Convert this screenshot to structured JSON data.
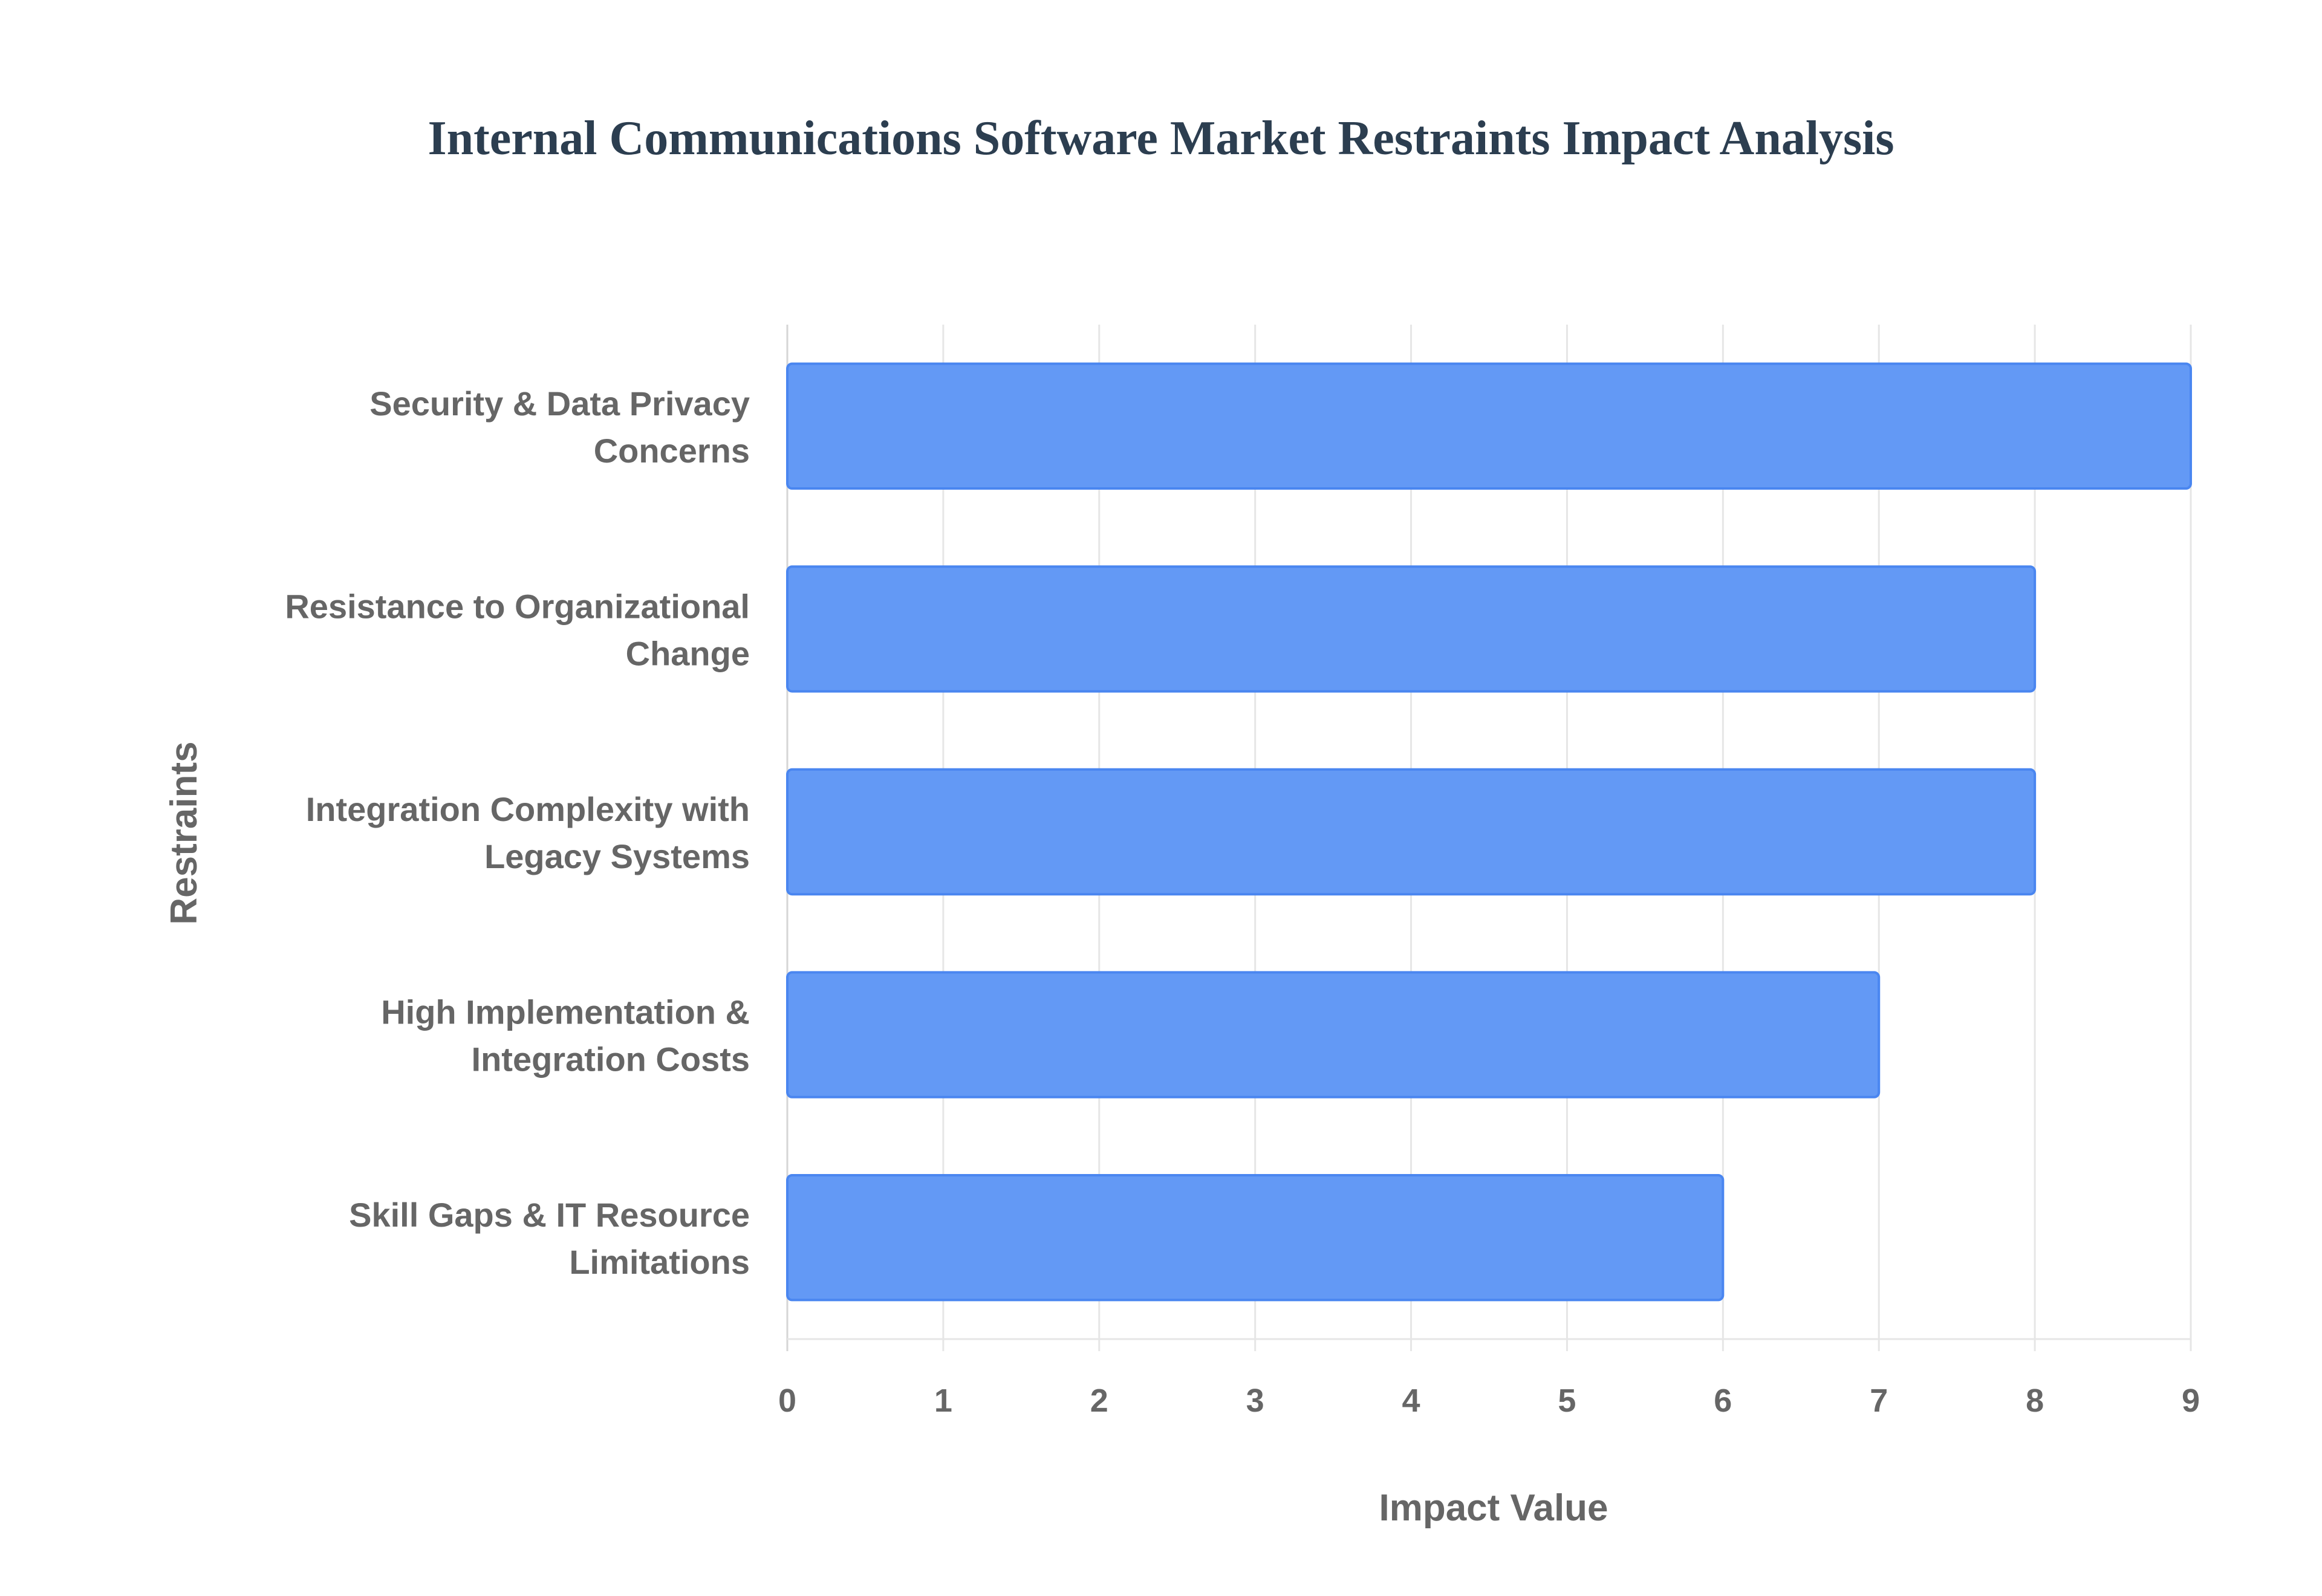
{
  "chart_data": {
    "type": "bar",
    "orientation": "horizontal",
    "title": "Internal Communications Software Market Restraints Impact Analysis",
    "xlabel": "Impact Value",
    "ylabel": "Restraints",
    "xlim": [
      0,
      9
    ],
    "xticks": [
      "0",
      "1",
      "2",
      "3",
      "4",
      "5",
      "6",
      "7",
      "8",
      "9"
    ],
    "grid": true,
    "categories": [
      [
        "Security & Data Privacy",
        "Concerns"
      ],
      [
        "Resistance to Organizational",
        "Change"
      ],
      [
        "Integration Complexity with",
        "Legacy Systems"
      ],
      [
        "High Implementation &",
        "Integration Costs"
      ],
      [
        "Skill Gaps & IT Resource",
        "Limitations"
      ]
    ],
    "values": [
      9,
      8,
      8,
      7,
      6
    ],
    "colors": {
      "bar_fill": "#6399f5",
      "bar_border": "#4a86f0",
      "grid": "#e6e6e6",
      "text": "#666666",
      "title": "#2c3e50"
    }
  }
}
